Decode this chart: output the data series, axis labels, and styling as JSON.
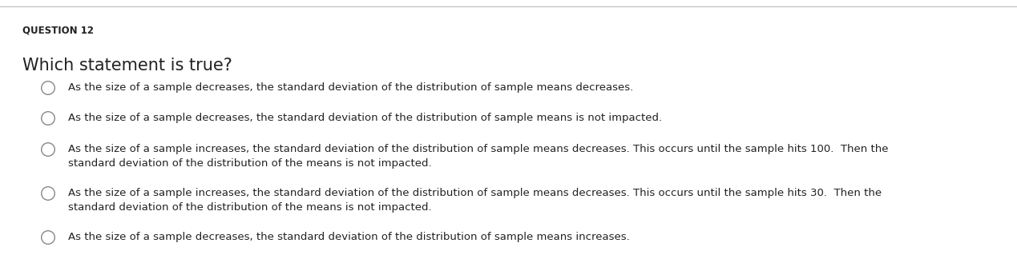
{
  "background_color": "#ffffff",
  "top_line_color": "#bbbbbb",
  "question_label": "QUESTION 12",
  "question_label_fontsize": 8.5,
  "question_text": "Which statement is true?",
  "question_text_fontsize": 15,
  "options": [
    {
      "line1": "As the size of a sample decreases, the standard deviation of the distribution of sample means decreases.",
      "line2": null
    },
    {
      "line1": "As the size of a sample decreases, the standard deviation of the distribution of sample means is not impacted.",
      "line2": null
    },
    {
      "line1": "As the size of a sample increases, the standard deviation of the distribution of sample means decreases. This occurs until the sample hits 100.  Then the",
      "line2": "standard deviation of the distribution of the means is not impacted."
    },
    {
      "line1": "As the size of a sample increases, the standard deviation of the distribution of sample means decreases. This occurs until the sample hits 30.  Then the",
      "line2": "standard deviation of the distribution of the means is not impacted."
    },
    {
      "line1": "As the size of a sample decreases, the standard deviation of the distribution of sample means increases.",
      "line2": null
    }
  ],
  "option_fontsize": 9.5,
  "text_color": "#222222",
  "circle_color": "#ffffff",
  "circle_edge_color": "#888888"
}
